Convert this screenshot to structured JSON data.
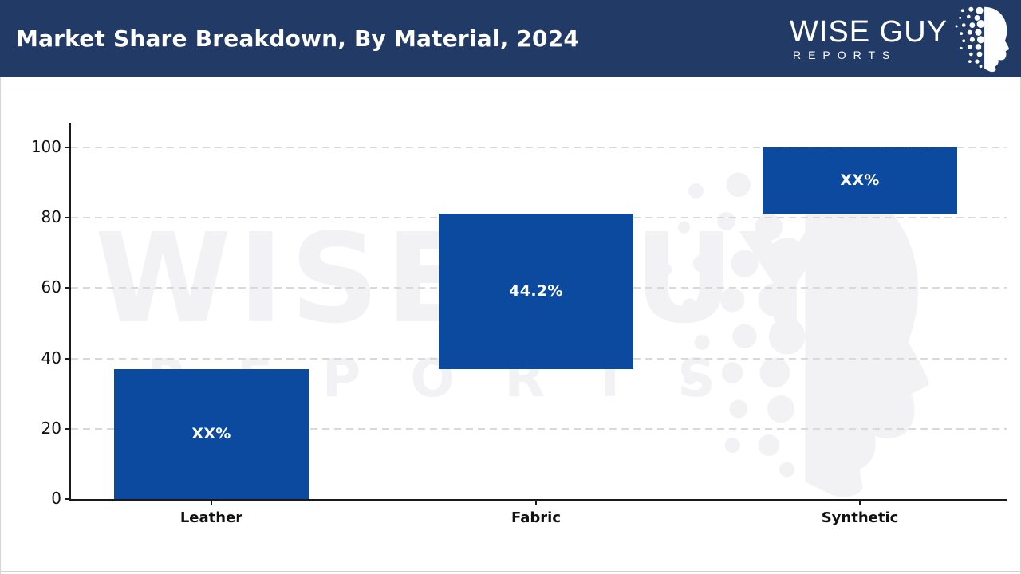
{
  "header": {
    "title": "Market Share Breakdown, By Material, 2024",
    "logo": {
      "line1": "WISE GUY",
      "line2": "REPORTS"
    }
  },
  "watermark": {
    "line1": "WISE GUY",
    "line2": "REPORTS"
  },
  "chart_data": {
    "type": "bar",
    "subtype": "waterfall",
    "title": "Market Share Breakdown, By Material, 2024",
    "categories": [
      "Leather",
      "Fabric",
      "Synthetic"
    ],
    "series": [
      {
        "name": "Market Share (%)",
        "values": [
          37.0,
          44.2,
          18.8
        ]
      }
    ],
    "cumulative": [
      [
        0,
        37.0
      ],
      [
        37.0,
        81.2
      ],
      [
        81.2,
        100
      ]
    ],
    "bar_labels": [
      "XX%",
      "44.2%",
      "XX%"
    ],
    "xlabel": "",
    "ylabel": "",
    "ylim": [
      0,
      105
    ],
    "yticks": [
      0,
      20,
      40,
      60,
      80,
      100
    ],
    "bar_color": "#0b4a9f",
    "label_color": "#ffffff",
    "grid": "horizontal-dashed",
    "legend": "none"
  }
}
